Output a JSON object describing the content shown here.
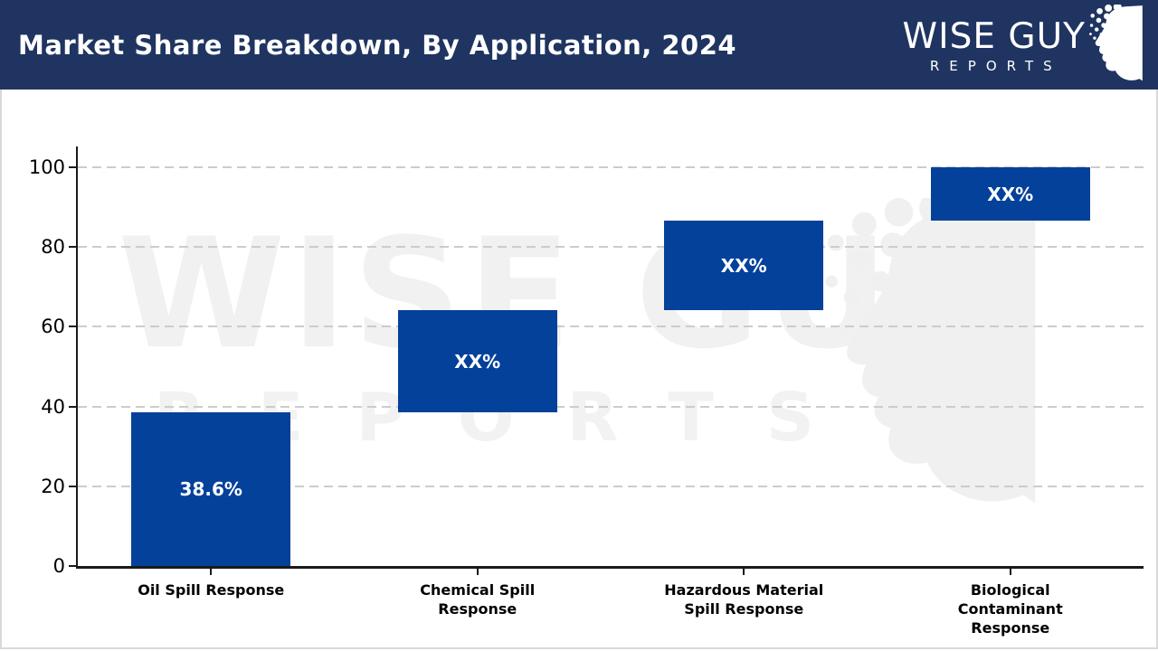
{
  "header": {
    "title": "Market Share Breakdown, By Application, 2024",
    "bg_color": "#1F3461",
    "logo": {
      "line1": "WISE GUY",
      "line2": "REPORTS"
    }
  },
  "watermark": {
    "line1": "WISE GUY",
    "line2": "REPORTS"
  },
  "chart_data": {
    "type": "bar",
    "variant": "waterfall",
    "title": "Market Share Breakdown, By Application, 2024",
    "categories": [
      "Oil Spill Response",
      "Chemical Spill Response",
      "Hazardous Material Spill Response",
      "Biological Contaminant Response"
    ],
    "category_lines": [
      [
        "Oil Spill Response"
      ],
      [
        "Chemical Spill",
        "Response"
      ],
      [
        "Hazardous Material",
        "Spill Response"
      ],
      [
        "Biological",
        "Contaminant",
        "Response"
      ]
    ],
    "segments": [
      {
        "start": 0,
        "end": 38.6,
        "label": "38.6%"
      },
      {
        "start": 38.6,
        "end": 64.1,
        "label": "XX%"
      },
      {
        "start": 64.1,
        "end": 86.6,
        "label": "XX%"
      },
      {
        "start": 86.6,
        "end": 100.0,
        "label": "XX%"
      }
    ],
    "yticks": [
      0,
      20,
      40,
      60,
      80,
      100
    ],
    "ylim": [
      0,
      105
    ],
    "grid": {
      "horizontal_dashed": true,
      "color": "#cccccc"
    },
    "legend": "none",
    "bar_color": "#04419A",
    "bar_label_color": "#ffffff",
    "axis_color": "#1a1a1a"
  }
}
